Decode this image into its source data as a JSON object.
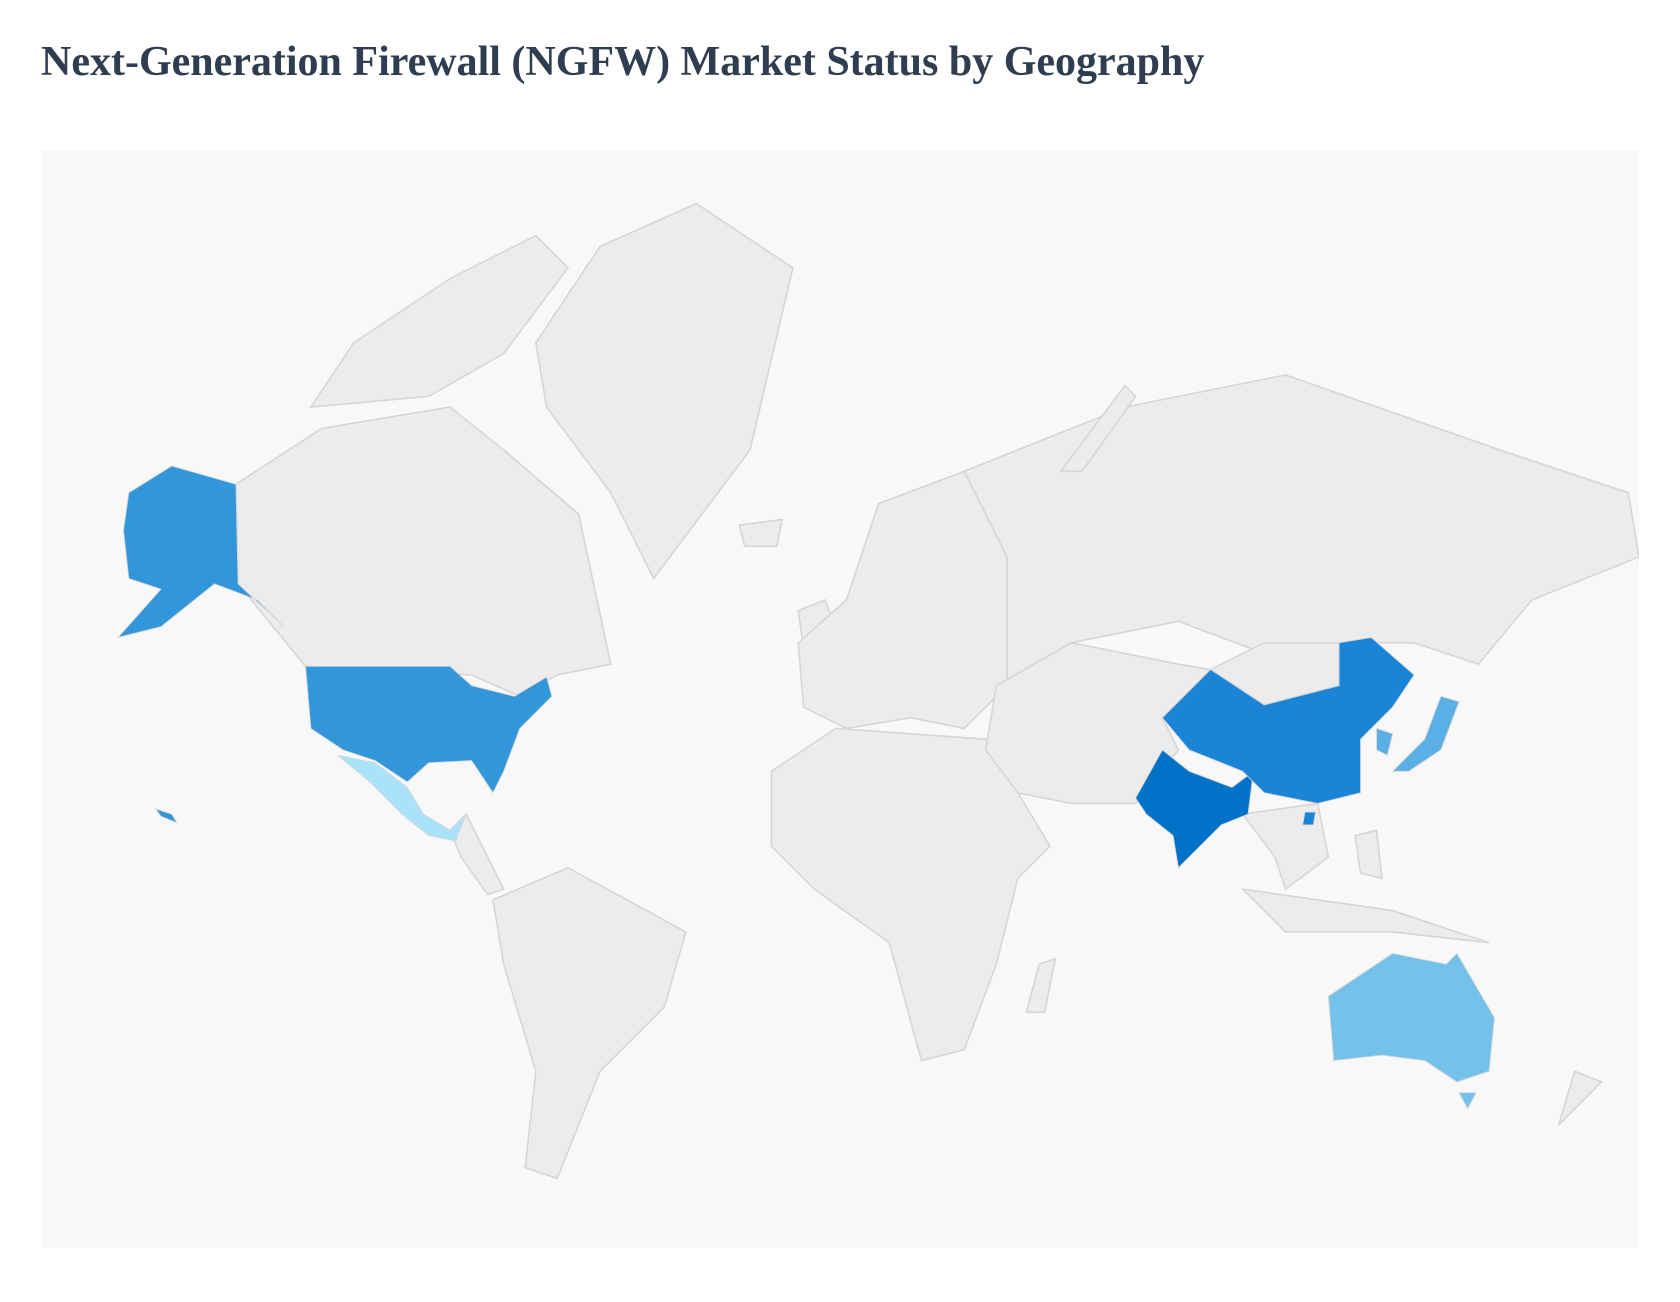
{
  "title": "Next-Generation Firewall (NGFW) Market Status by Geography",
  "chart_data": {
    "type": "geo-choropleth",
    "title": "Next-Generation Firewall (NGFW) Market Status by Geography",
    "default_color": "#ececec",
    "background_color": "#f8f8f8",
    "legend": "none",
    "highlighted_regions": [
      {
        "region": "India",
        "color": "#0073c8"
      },
      {
        "region": "China",
        "color": "#1a85d6"
      },
      {
        "region": "United States",
        "color": "#3296db"
      },
      {
        "region": "Japan",
        "color": "#5aafe6"
      },
      {
        "region": "South Korea",
        "color": "#5aafe6"
      },
      {
        "region": "Australia",
        "color": "#74c2ec"
      },
      {
        "region": "Mexico",
        "color": "#a8e3fb"
      }
    ]
  }
}
